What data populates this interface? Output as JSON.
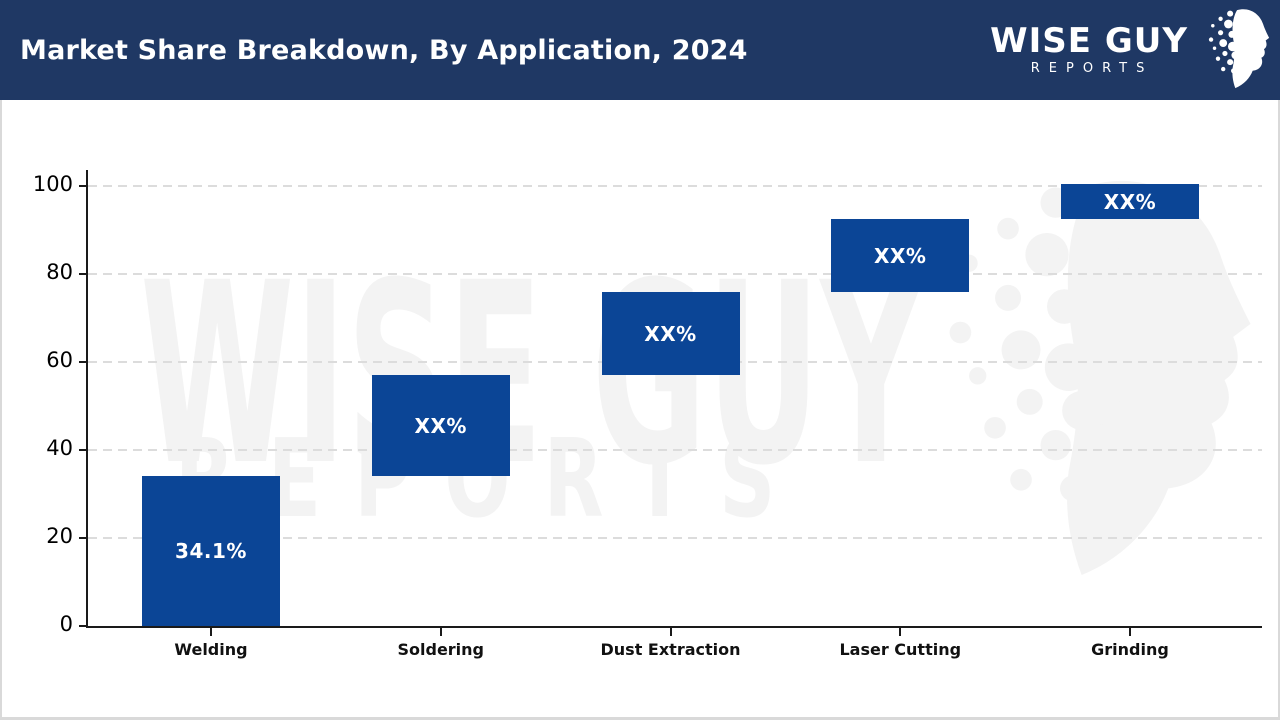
{
  "header": {
    "title": "Market Share Breakdown, By Application, 2024",
    "logo": {
      "line1": "WISE GUY",
      "line2": "REPORTS"
    }
  },
  "watermark": {
    "line1": "WISE GUY",
    "line2": "REPORTS"
  },
  "colors": {
    "header_bg": "#1F3864",
    "bar": "#0B4596",
    "grid": "#DCDCDC",
    "axis": "#1A1A1A",
    "bar_label_text": "#FFFFFF",
    "tick_text": "#000000",
    "watermark": "#F3F3F3",
    "bottom_strip": "#D9D9D9"
  },
  "chart_data": {
    "type": "waterfall",
    "title": "Market Share Breakdown, By Application, 2024",
    "categories": [
      "Welding",
      "Soldering",
      "Dust Extraction",
      "Laser Cutting",
      "Grinding"
    ],
    "segments": [
      {
        "category": "Welding",
        "start": 0,
        "end": 34.1,
        "label": "34.1%"
      },
      {
        "category": "Soldering",
        "start": 34.1,
        "end": 57.0,
        "label": "XX%"
      },
      {
        "category": "Dust Extraction",
        "start": 57.0,
        "end": 75.9,
        "label": "XX%"
      },
      {
        "category": "Laser Cutting",
        "start": 75.9,
        "end": 92.4,
        "label": "XX%"
      },
      {
        "category": "Grinding",
        "start": 92.4,
        "end": 100.5,
        "label": "XX%"
      }
    ],
    "yticks": [
      0,
      20,
      40,
      60,
      80,
      100
    ],
    "ylim": [
      0,
      104
    ],
    "xlabel": "",
    "ylabel": "",
    "grid": "horizontal-dashed",
    "legend": "none"
  }
}
